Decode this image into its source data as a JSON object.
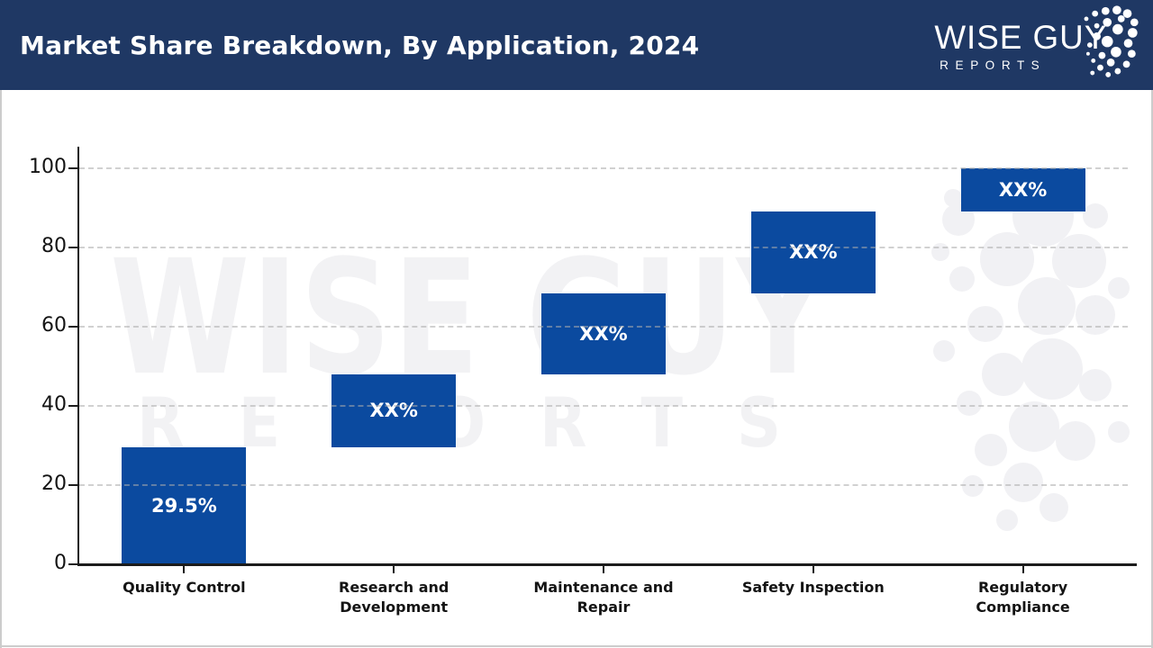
{
  "header": {
    "title": "Market Share Breakdown, By Application, 2024",
    "bg_color": "#1f3864",
    "logo": {
      "line1": "WISE GUY",
      "line2": "R E P O R T S"
    }
  },
  "watermark": {
    "line1": "WISE GUY",
    "line2": "R E P O R T S"
  },
  "chart_data": {
    "type": "bar",
    "subtype": "floating-segment-waterfall",
    "title": "Market Share Breakdown, By Application, 2024",
    "categories": [
      "Quality Control",
      "Research and Development",
      "Maintenance and Repair",
      "Safety Inspection",
      "Regulatory Compliance"
    ],
    "category_label_lines": [
      [
        "Quality Control"
      ],
      [
        "Research and",
        "Development"
      ],
      [
        "Maintenance and",
        "Repair"
      ],
      [
        "Safety Inspection"
      ],
      [
        "Regulatory",
        "Compliance"
      ]
    ],
    "segments": [
      {
        "category": "Quality Control",
        "start": 0,
        "end": 29.5,
        "label": "29.5%"
      },
      {
        "category": "Research and Development",
        "start": 29.5,
        "end": 48,
        "label": "XX%"
      },
      {
        "category": "Maintenance and Repair",
        "start": 48,
        "end": 68.5,
        "label": "XX%"
      },
      {
        "category": "Safety Inspection",
        "start": 68.5,
        "end": 89,
        "label": "XX%"
      },
      {
        "category": "Regulatory Compliance",
        "start": 89,
        "end": 100,
        "label": "XX%"
      }
    ],
    "ylim": [
      0,
      100
    ],
    "yticks": [
      0,
      20,
      40,
      60,
      80,
      100
    ],
    "xlabel": "",
    "ylabel": "",
    "grid": "horizontal dashed",
    "legend_position": "none",
    "bar_color": "#0b4a9f",
    "bar_label_color": "#ffffff"
  }
}
